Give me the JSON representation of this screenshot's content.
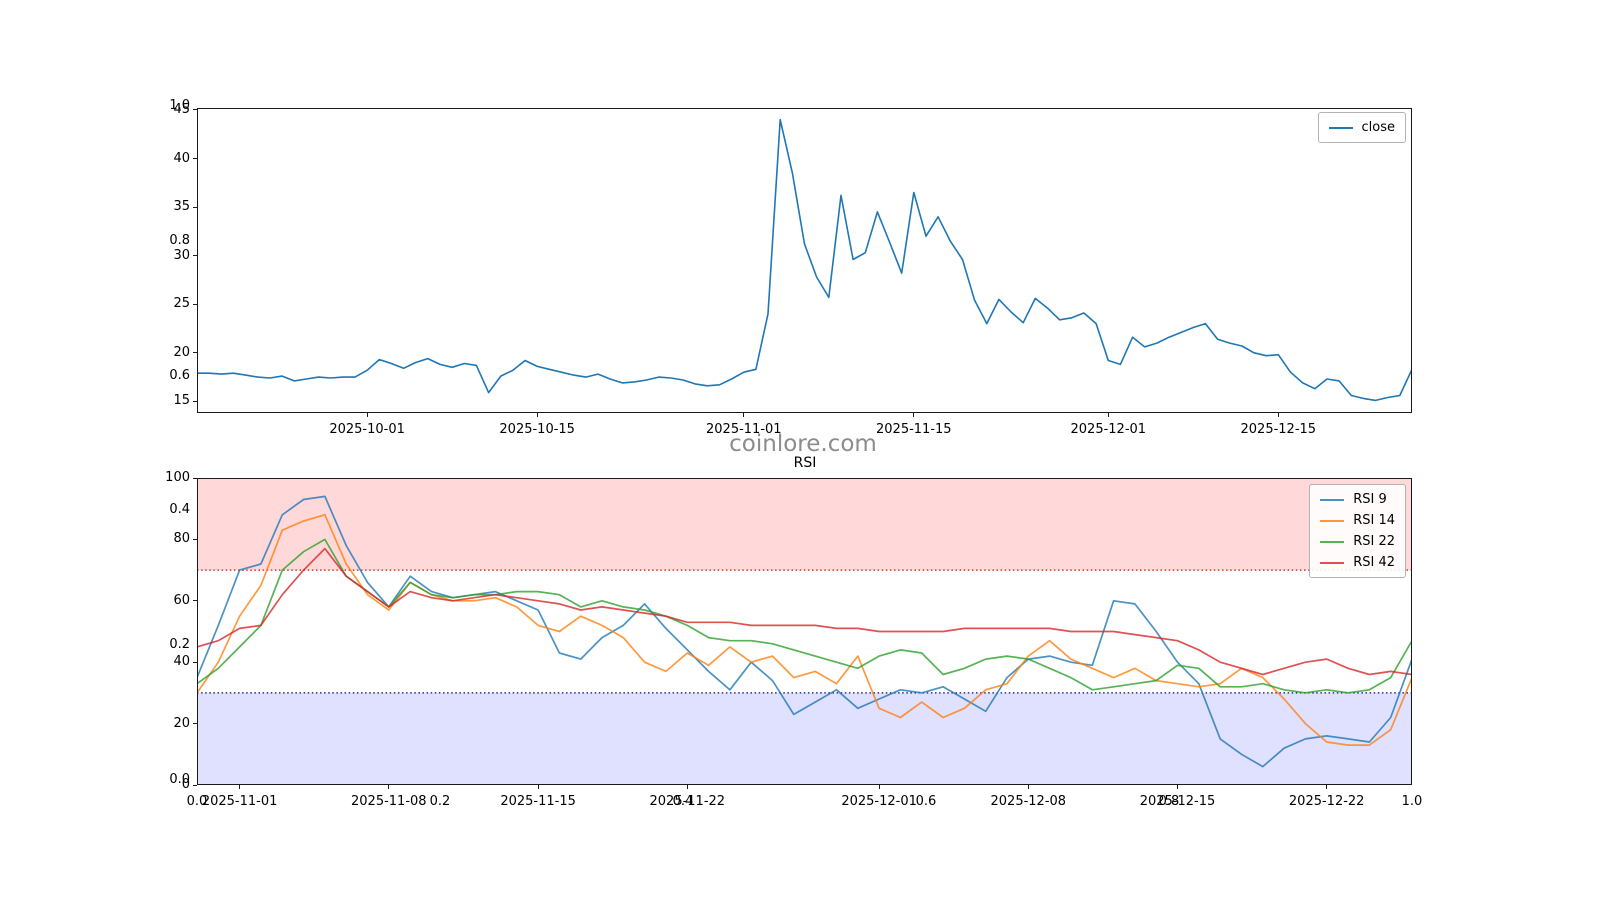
{
  "watermark": "coinlore.com",
  "ghost_axis": {
    "yticks": [
      "1.0",
      "0.8",
      "0.6",
      "0.4",
      "0.2",
      "0.0"
    ],
    "xticks": [
      "0.0",
      "0.2",
      "0.4",
      "0.6",
      "0.8",
      "1.0"
    ]
  },
  "chart_data": [
    {
      "type": "line",
      "panel": "price",
      "title": "",
      "grid": false,
      "legend_position": "upper right",
      "ylim": [
        13.8,
        45.2
      ],
      "yticks": [
        15,
        20,
        25,
        30,
        35,
        40,
        45
      ],
      "x_start": "2025-09-17",
      "x_end": "2025-12-26",
      "x_freq": "daily",
      "x_ticks": [
        {
          "label": "2025-10-01",
          "index": 14
        },
        {
          "label": "2025-10-15",
          "index": 28
        },
        {
          "label": "2025-11-01",
          "index": 45
        },
        {
          "label": "2025-11-15",
          "index": 59
        },
        {
          "label": "2025-12-01",
          "index": 75
        },
        {
          "label": "2025-12-15",
          "index": 89
        }
      ],
      "series": [
        {
          "name": "close",
          "color": "#1f77b4",
          "values": [
            17.9,
            17.9,
            17.8,
            17.9,
            17.7,
            17.5,
            17.4,
            17.6,
            17.1,
            17.3,
            17.5,
            17.4,
            17.5,
            17.5,
            18.2,
            19.3,
            18.9,
            18.4,
            19.0,
            19.4,
            18.8,
            18.5,
            18.9,
            18.7,
            15.9,
            17.6,
            18.2,
            19.2,
            18.6,
            18.3,
            18.0,
            17.7,
            17.5,
            17.8,
            17.3,
            16.9,
            17.0,
            17.2,
            17.5,
            17.4,
            17.2,
            16.8,
            16.6,
            16.7,
            17.3,
            18.0,
            18.3,
            24.0,
            44.0,
            38.5,
            31.2,
            27.8,
            25.7,
            36.2,
            29.6,
            30.3,
            34.5,
            31.4,
            28.2,
            36.5,
            32.0,
            34.0,
            31.5,
            29.6,
            25.4,
            23.0,
            25.5,
            24.2,
            23.1,
            25.6,
            24.6,
            23.4,
            23.6,
            24.1,
            23.0,
            19.2,
            18.8,
            21.6,
            20.6,
            21.0,
            21.6,
            22.1,
            22.6,
            23.0,
            21.4,
            21.0,
            20.7,
            20.0,
            19.7,
            19.8,
            18.0,
            16.9,
            16.3,
            17.3,
            17.1,
            15.6,
            15.3,
            15.1,
            15.4,
            15.6,
            18.3
          ]
        }
      ]
    },
    {
      "type": "line",
      "panel": "rsi",
      "title": "RSI",
      "grid": false,
      "legend_position": "upper right",
      "ylim": [
        0,
        100
      ],
      "yticks": [
        0,
        20,
        40,
        60,
        80,
        100
      ],
      "x_start": "2025-10-30",
      "x_end": "2025-12-26",
      "x_freq": "daily",
      "line_alpha": 0.8,
      "x_ticks": [
        {
          "label": "2025-11-01",
          "index": 2
        },
        {
          "label": "2025-11-08",
          "index": 9
        },
        {
          "label": "2025-11-15",
          "index": 16
        },
        {
          "label": "2025-11-22",
          "index": 23
        },
        {
          "label": "2025-12-01",
          "index": 32
        },
        {
          "label": "2025-12-08",
          "index": 39
        },
        {
          "label": "2025-12-15",
          "index": 46
        },
        {
          "label": "2025-12-22",
          "index": 53
        }
      ],
      "bands": [
        {
          "name": "overbought",
          "from": 70,
          "to": 100,
          "color": "#ff0000",
          "opacity": 0.15,
          "line_at": 70,
          "line_color": "#e60000",
          "line_style": "dotted"
        },
        {
          "name": "oversold",
          "from": 0,
          "to": 30,
          "color": "#0000ff",
          "opacity": 0.12,
          "line_at": 30,
          "line_color": "#00008b",
          "line_style": "dotted"
        }
      ],
      "series": [
        {
          "name": "RSI 9",
          "color": "#1f77b4",
          "values": [
            35,
            52,
            70,
            72,
            88,
            93,
            94,
            78,
            66,
            58,
            68,
            63,
            61,
            62,
            63,
            60,
            57,
            43,
            41,
            48,
            52,
            59,
            51,
            44,
            37,
            31,
            40,
            34,
            23,
            27,
            31,
            25,
            28,
            31,
            30,
            32,
            28,
            24,
            35,
            41,
            42,
            40,
            39,
            60,
            59,
            50,
            40,
            33,
            15,
            10,
            6,
            12,
            15,
            16,
            15,
            14,
            22,
            41
          ]
        },
        {
          "name": "RSI 14",
          "color": "#ff7f0e",
          "values": [
            30,
            40,
            55,
            65,
            83,
            86,
            88,
            72,
            62,
            57,
            66,
            62,
            60,
            60,
            61,
            58,
            52,
            50,
            55,
            52,
            48,
            40,
            37,
            43,
            39,
            45,
            40,
            42,
            35,
            37,
            33,
            42,
            25,
            22,
            27,
            22,
            25,
            31,
            33,
            42,
            47,
            41,
            38,
            35,
            38,
            34,
            33,
            32,
            33,
            38,
            35,
            28,
            20,
            14,
            13,
            13,
            18,
            35
          ]
        },
        {
          "name": "RSI 22",
          "color": "#2ca02c",
          "values": [
            33,
            38,
            45,
            52,
            70,
            76,
            80,
            68,
            63,
            58,
            66,
            62,
            61,
            62,
            62,
            63,
            63,
            62,
            58,
            60,
            58,
            57,
            55,
            52,
            48,
            47,
            47,
            46,
            44,
            42,
            40,
            38,
            42,
            44,
            43,
            36,
            38,
            41,
            42,
            41,
            38,
            35,
            31,
            32,
            33,
            34,
            39,
            38,
            32,
            32,
            33,
            31,
            30,
            31,
            30,
            31,
            35,
            47
          ]
        },
        {
          "name": "RSI 42",
          "color": "#d62728",
          "values": [
            45,
            47,
            51,
            52,
            62,
            70,
            77,
            68,
            63,
            58,
            63,
            61,
            60,
            61,
            62,
            61,
            60,
            59,
            57,
            58,
            57,
            56,
            55,
            53,
            53,
            53,
            52,
            52,
            52,
            52,
            51,
            51,
            50,
            50,
            50,
            50,
            51,
            51,
            51,
            51,
            51,
            50,
            50,
            50,
            49,
            48,
            47,
            44,
            40,
            38,
            36,
            38,
            40,
            41,
            38,
            36,
            37,
            36
          ]
        }
      ]
    }
  ]
}
